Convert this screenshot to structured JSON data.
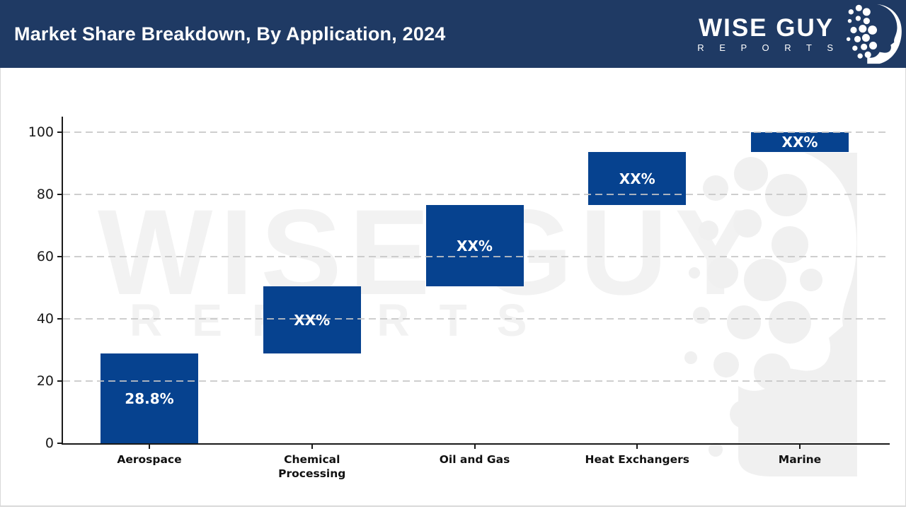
{
  "header": {
    "title": "Market Share Breakdown, By Application, 2024",
    "logo": {
      "line1": "WISE GUY",
      "line2": "R E P O R T S"
    }
  },
  "watermark": {
    "line1": "WISE GUY",
    "line2": "REPORTS"
  },
  "colors": {
    "header_bg": "#1f3a64",
    "bar": "#06428f",
    "grid": "#c6c6c6",
    "axis": "#1a1a1a",
    "watermark": "#f2f2f2",
    "bar_label": "#ffffff"
  },
  "chart_data": {
    "type": "bar",
    "subtype": "waterfall-floating-bars",
    "title": "Market Share Breakdown, By Application, 2024",
    "categories": [
      "Aerospace",
      "Chemical Processing",
      "Oil and Gas",
      "Heat Exchangers",
      "Marine"
    ],
    "categories_lines": [
      [
        "Aerospace"
      ],
      [
        "Chemical",
        "Processing"
      ],
      [
        "Oil and Gas"
      ],
      [
        "Heat Exchangers"
      ],
      [
        "Marine"
      ]
    ],
    "segments": [
      {
        "category": "Aerospace",
        "start": 0,
        "end": 28.8,
        "label": "28.8%"
      },
      {
        "category": "Chemical Processing",
        "start": 28.8,
        "end": 50.5,
        "label": "XX%"
      },
      {
        "category": "Oil and Gas",
        "start": 50.5,
        "end": 76.5,
        "label": "XX%"
      },
      {
        "category": "Heat Exchangers",
        "start": 76.5,
        "end": 93.7,
        "label": "XX%"
      },
      {
        "category": "Marine",
        "start": 93.7,
        "end": 100,
        "label": "XX%"
      }
    ],
    "yticks": [
      0,
      20,
      40,
      60,
      80,
      100
    ],
    "ylim": [
      0,
      105
    ],
    "xlabel": "",
    "ylabel": "",
    "grid": "horizontal dashed, drawn above bars",
    "legend": "none"
  }
}
